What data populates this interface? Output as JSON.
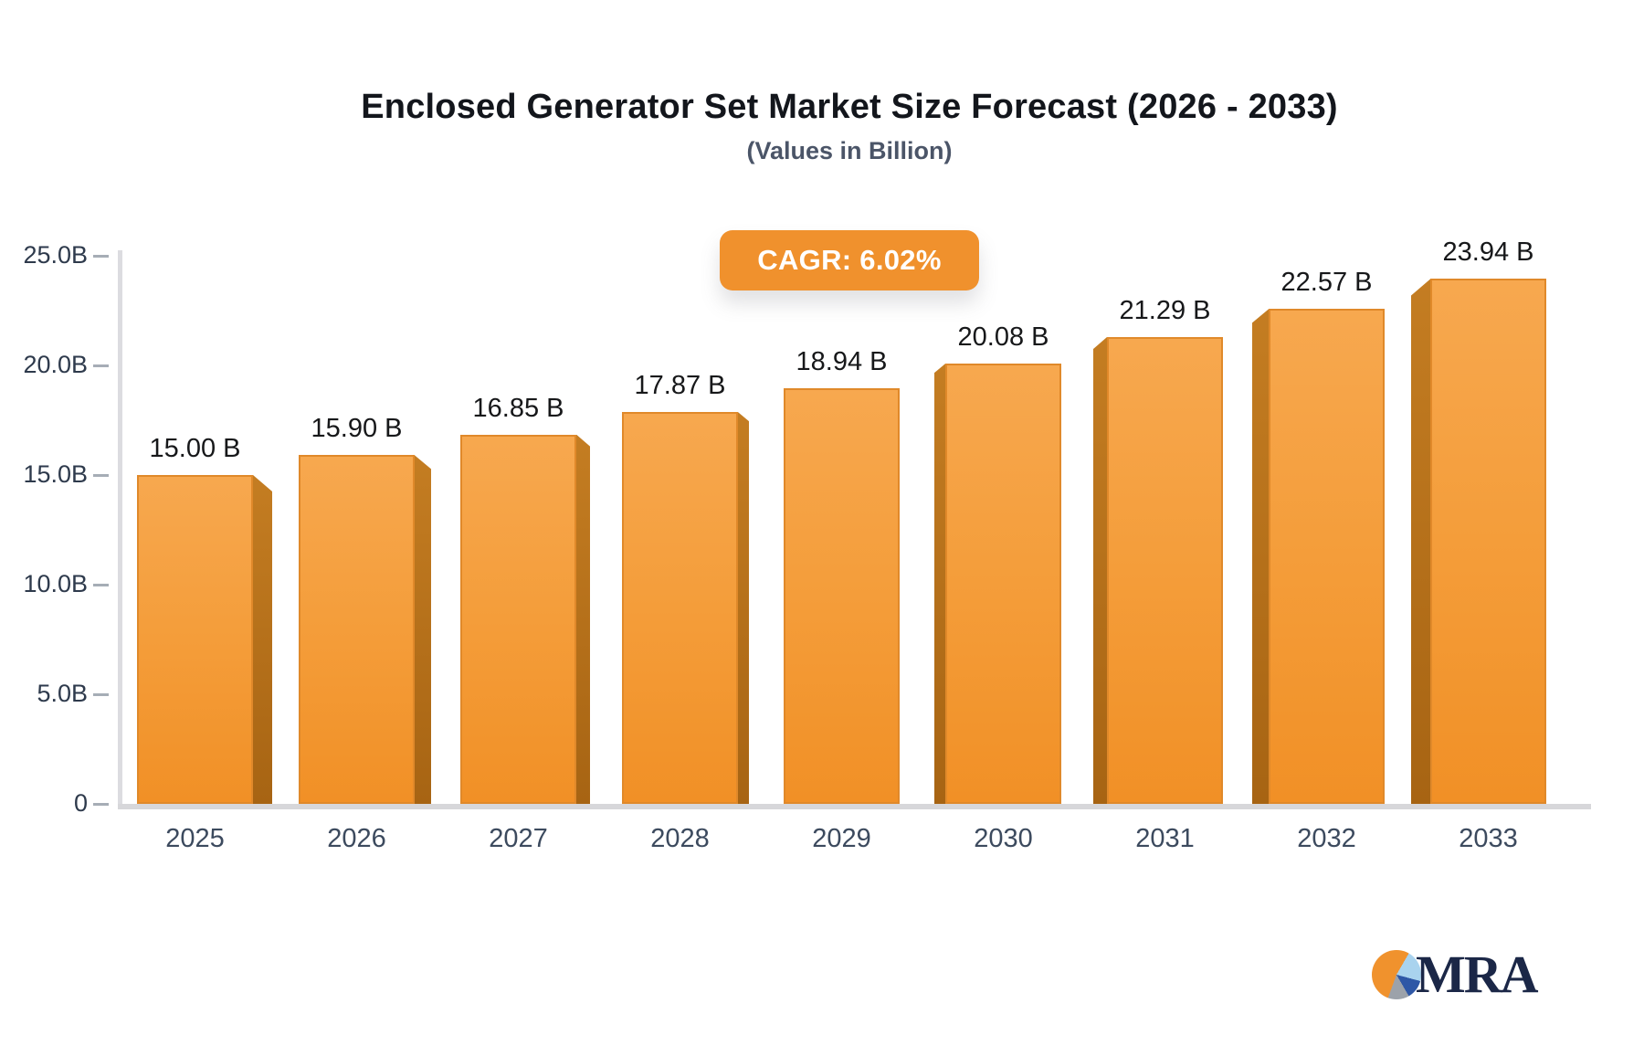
{
  "header": {
    "title": "Enclosed Generator Set Market Size Forecast (2026 - 2033)",
    "subtitle": "(Values in Billion)"
  },
  "badge": {
    "label": "CAGR: 6.02%",
    "background": "#F0912D",
    "text_color": "#FFFFFF"
  },
  "chart_data": {
    "type": "bar",
    "title": "Enclosed Generator Set Market Size Forecast (2026 - 2033)",
    "subtitle": "(Values in Billion)",
    "cagr": "6.02%",
    "categories": [
      "2025",
      "2026",
      "2027",
      "2028",
      "2029",
      "2030",
      "2031",
      "2032",
      "2033"
    ],
    "values": [
      15.0,
      15.9,
      16.85,
      17.87,
      18.94,
      20.08,
      21.29,
      22.57,
      23.94
    ],
    "value_labels": [
      "15.00 B",
      "15.90 B",
      "16.85 B",
      "17.87 B",
      "18.94 B",
      "20.08 B",
      "21.29 B",
      "22.57 B",
      "23.94 B"
    ],
    "unit": "Billion",
    "xlabel": "",
    "ylabel": "",
    "ylim": [
      0,
      25
    ],
    "yticks": [
      {
        "value": 0,
        "label": "0"
      },
      {
        "value": 5,
        "label": "5.0B"
      },
      {
        "value": 10,
        "label": "10.0B"
      },
      {
        "value": 15,
        "label": "15.0B"
      },
      {
        "value": 20,
        "label": "20.0B"
      },
      {
        "value": 25,
        "label": "25.0B"
      }
    ],
    "grid": false,
    "legend": false,
    "style": "3d-perspective-bars",
    "bar_colors": {
      "face_top": "#F7A84F",
      "face_bottom": "#F19026",
      "side_top": "#C47D22",
      "side_bottom": "#A76413",
      "edge": "#E0892A"
    }
  },
  "footer_logo": {
    "text": "MRA",
    "pie_colors": [
      "#F0922D",
      "#A9D3EE",
      "#2E57A6",
      "#9CA2AA"
    ]
  }
}
